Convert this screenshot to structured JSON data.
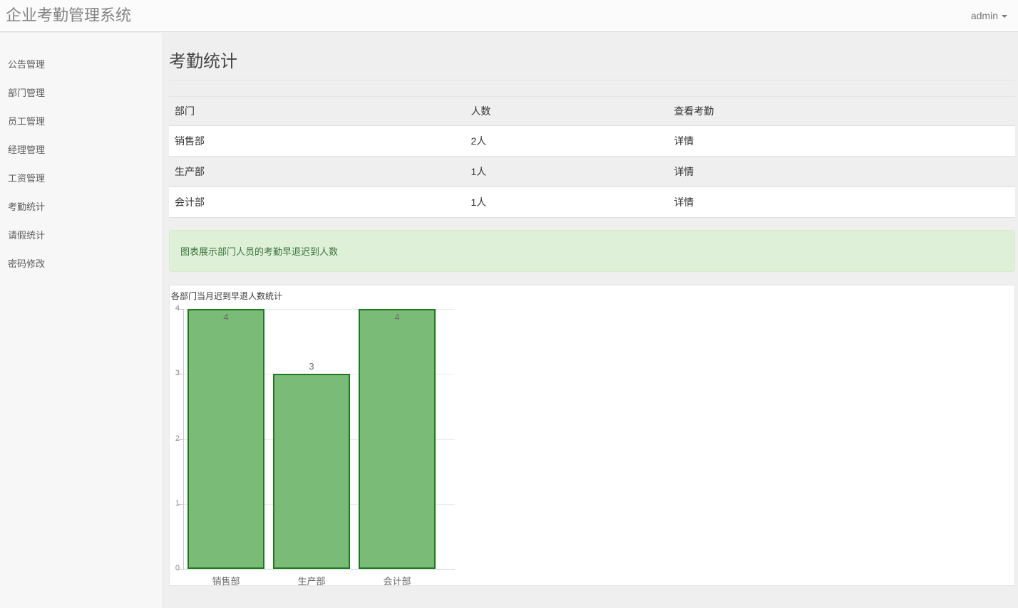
{
  "app": {
    "title": "企业考勤管理系统",
    "user": "admin"
  },
  "sidebar": {
    "items": [
      "公告管理",
      "部门管理",
      "员工管理",
      "经理管理",
      "工资管理",
      "考勤统计",
      "请假统计",
      "密码修改"
    ]
  },
  "main": {
    "page_title": "考勤统计",
    "table": {
      "headers": [
        "部门",
        "人数",
        "查看考勤"
      ],
      "rows": [
        [
          "销售部",
          "2人",
          "详情"
        ],
        [
          "生产部",
          "1人",
          "详情"
        ],
        [
          "会计部",
          "1人",
          "详情"
        ]
      ]
    },
    "alert": "图表展示部门人员的考勤早退迟到人数"
  },
  "chart_data": {
    "type": "bar",
    "title": "各部门当月迟到早退人数统计",
    "categories": [
      "销售部",
      "生产部",
      "会计部"
    ],
    "values": [
      4,
      3,
      4
    ],
    "xlabel": "",
    "ylabel": "",
    "ylim": [
      0,
      4
    ],
    "yticks": [
      0,
      1,
      2,
      3,
      4
    ],
    "grid": true,
    "legend": "none",
    "bar_fill": "#7abc77",
    "bar_border": "#1d7a1f",
    "value_label_color": "#6b6b6b"
  },
  "colors": {
    "alert_bg": "#dff0d8",
    "alert_border": "#d6e9c6",
    "alert_text": "#3c763d",
    "accent_green": "#7abc77"
  }
}
